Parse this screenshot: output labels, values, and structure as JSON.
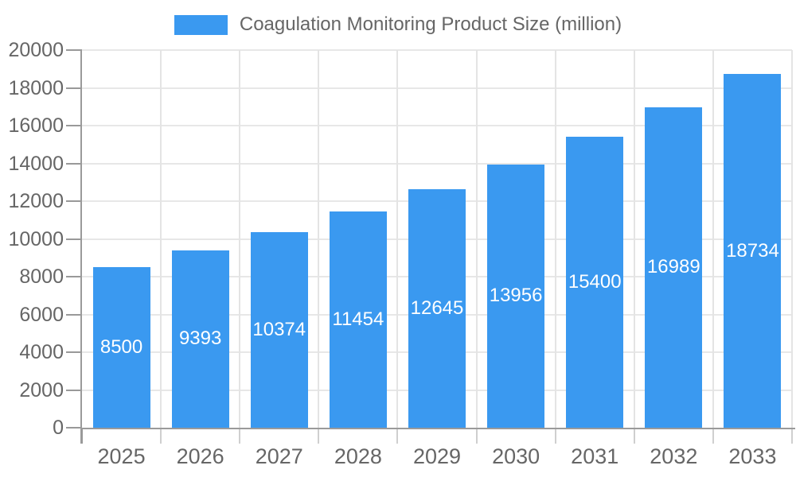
{
  "chart_data": {
    "type": "bar",
    "title": "Coagulation Monitoring Product Size (million)",
    "categories": [
      "2025",
      "2026",
      "2027",
      "2028",
      "2029",
      "2030",
      "2031",
      "2032",
      "2033"
    ],
    "values": [
      8500,
      9393,
      10374,
      11454,
      12645,
      13956,
      15400,
      16989,
      18734
    ],
    "xlabel": "",
    "ylabel": "",
    "ylim": [
      0,
      20000
    ],
    "ytick_step": 2000,
    "ytick_labels": [
      "0",
      "2000",
      "4000",
      "6000",
      "8000",
      "10000",
      "12000",
      "14000",
      "16000",
      "18000",
      "20000"
    ],
    "grid": true,
    "legend_position": "top",
    "value_labels": "inside-center"
  },
  "legend": {
    "label": "Coagulation Monitoring Product Size (million)"
  },
  "colors": {
    "bar": "#3a99f0",
    "value_text": "#ffffff",
    "axis_line": "#9a9a9a",
    "y_tick": "#999999",
    "x_tick": "#cfcfcf",
    "grid_h": "#e7e7e7",
    "grid_v": "#e4e4e4",
    "tick_text": "#666666",
    "title_text": "#666666",
    "background": "#ffffff"
  }
}
